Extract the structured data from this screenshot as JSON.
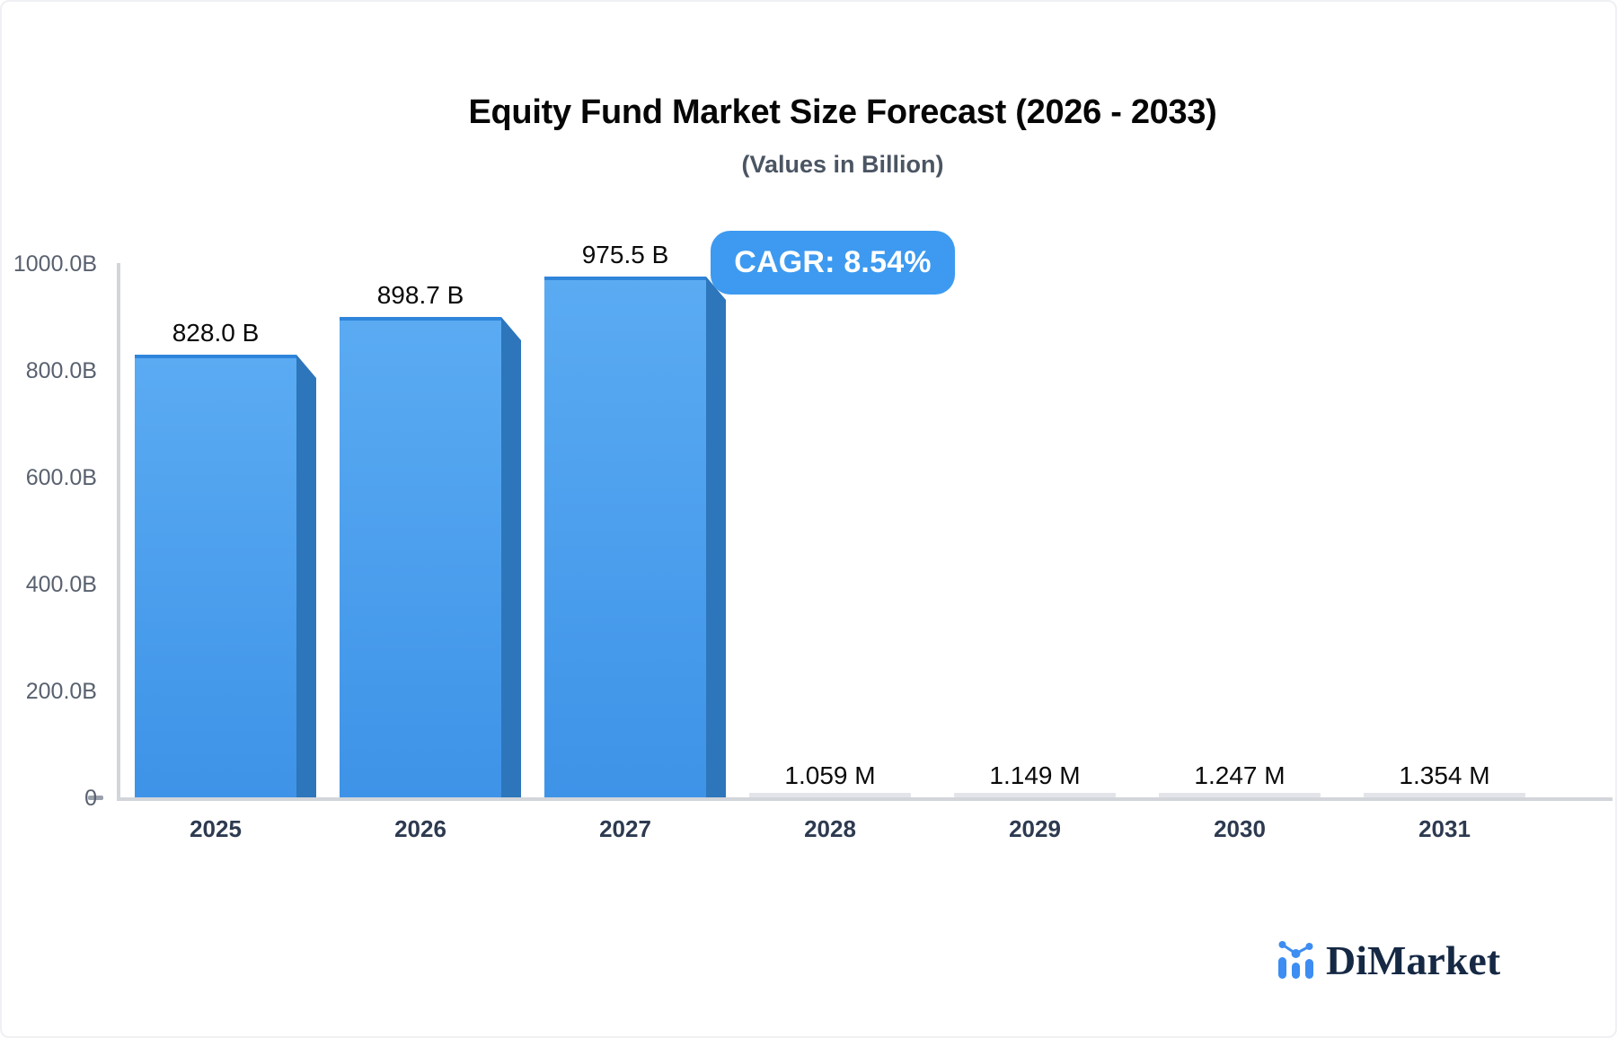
{
  "chart_data": {
    "type": "bar",
    "title": "Equity Fund Market Size Forecast (2026 - 2033)",
    "subtitle": "(Values in Billion)",
    "cagr_badge": "CAGR: 8.54%",
    "legend_position": "none",
    "grid": false,
    "ylim_billion": [
      0,
      1000
    ],
    "y_axis": {
      "ticks": [
        {
          "label": "1000.0B",
          "value_billion": 1000
        },
        {
          "label": "800.0B",
          "value_billion": 800
        },
        {
          "label": "600.0B",
          "value_billion": 600
        },
        {
          "label": "400.0B",
          "value_billion": 400
        },
        {
          "label": "200.0B",
          "value_billion": 200
        },
        {
          "label": "0",
          "value_billion": 0
        }
      ]
    },
    "categories": [
      "2025",
      "2026",
      "2027",
      "2028",
      "2029",
      "2030",
      "2031"
    ],
    "bars": [
      {
        "category": "2025",
        "label": "828.0 B",
        "value": 828.0,
        "unit": "B",
        "plotted_billion": 828.0,
        "style": "bar"
      },
      {
        "category": "2026",
        "label": "898.7 B",
        "value": 898.7,
        "unit": "B",
        "plotted_billion": 898.7,
        "style": "bar"
      },
      {
        "category": "2027",
        "label": "975.5 B",
        "value": 975.5,
        "unit": "B",
        "plotted_billion": 975.5,
        "style": "bar"
      },
      {
        "category": "2028",
        "label": "1.059 M",
        "value": 1.059,
        "unit": "M",
        "plotted_billion": 0,
        "style": "tiny"
      },
      {
        "category": "2029",
        "label": "1.149 M",
        "value": 1.149,
        "unit": "M",
        "plotted_billion": 0,
        "style": "tiny"
      },
      {
        "category": "2030",
        "label": "1.247 M",
        "value": 1.247,
        "unit": "M",
        "plotted_billion": 0,
        "style": "tiny"
      },
      {
        "category": "2031",
        "label": "1.354 M",
        "value": 1.354,
        "unit": "M",
        "plotted_billion": 0,
        "style": "tiny"
      }
    ]
  },
  "logo": {
    "text": "DiMarket",
    "icon": "mini-bar-chart-icon"
  },
  "colors": {
    "bar_top": "#5aabf2",
    "bar_bottom": "#3e93e8",
    "bar_side": "#2d76bb",
    "bar_edge": "#2f85da",
    "badge_blue": "#3d9af0",
    "logo_blue": "#3d8df2",
    "axis_gray": "#d2d5da"
  }
}
